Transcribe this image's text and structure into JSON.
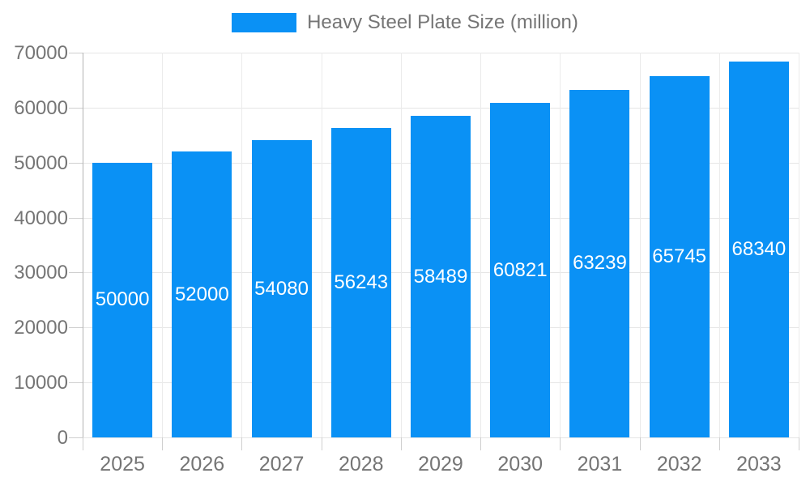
{
  "chart_data": {
    "type": "bar",
    "title": "",
    "legend_label": "Heavy Steel Plate Size (million)",
    "legend_position": "top-center",
    "categories": [
      "2025",
      "2026",
      "2027",
      "2028",
      "2029",
      "2030",
      "2031",
      "2032",
      "2033"
    ],
    "values": [
      50000,
      52000,
      54080,
      56243,
      58489,
      60821,
      63239,
      65745,
      68340
    ],
    "value_labels": [
      "50000",
      "52000",
      "54080",
      "56243",
      "58489",
      "60821",
      "63239",
      "65745",
      "68340"
    ],
    "ylim": [
      0,
      70000
    ],
    "yticks": [
      "0",
      "10000",
      "20000",
      "30000",
      "40000",
      "50000",
      "60000",
      "70000"
    ],
    "ytick_values": [
      0,
      10000,
      20000,
      30000,
      40000,
      50000,
      60000,
      70000
    ],
    "grid": true,
    "colors": {
      "bar": "#0a91f5",
      "value_label": "#ffffff",
      "axis_text": "#757575",
      "grid_line": "#e6e6e6",
      "axis_line": "#b3b3b3",
      "tick": "#cfcfcf",
      "background": "#ffffff"
    }
  }
}
